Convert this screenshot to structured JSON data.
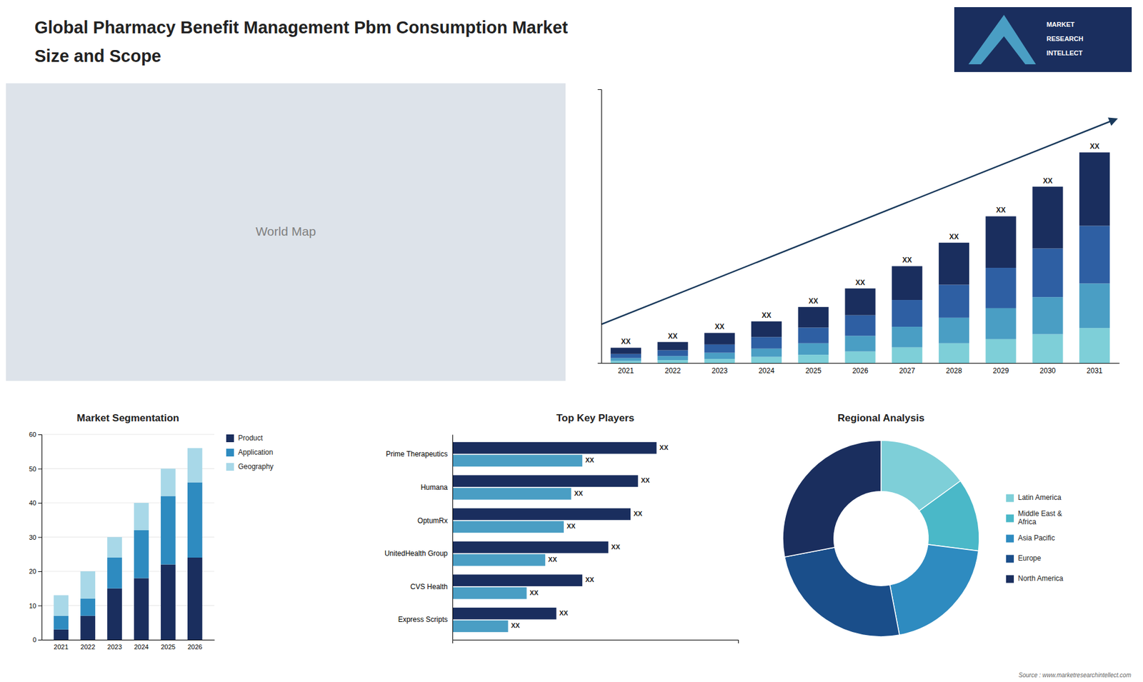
{
  "title": "Global Pharmacy Benefit Management Pbm Consumption Market",
  "subtitle": "Size and Scope",
  "annotations": [
    "World Map",
    "MARKET",
    "RESEARCH",
    "INTELLECT",
    "Source : www.marketresearchintellect.com"
  ],
  "chart_data": [
    {
      "type": "bar",
      "stacked": true,
      "categories": [
        "2021",
        "2022",
        "2023",
        "2024",
        "2025",
        "2026",
        "2027",
        "2028",
        "2029",
        "2030",
        "2031"
      ],
      "series": [
        {
          "color": "#7ecfd8",
          "values": [
            0.5,
            0.7,
            1.0,
            1.5,
            2.0,
            2.8,
            3.8,
            4.8,
            5.8,
            7.0,
            8.5
          ]
        },
        {
          "color": "#4a9ec4",
          "values": [
            0.7,
            1.0,
            1.5,
            2.0,
            2.8,
            3.8,
            5.0,
            6.2,
            7.5,
            9.0,
            10.8
          ]
        },
        {
          "color": "#2e5fa3",
          "values": [
            1.0,
            1.4,
            2.0,
            2.8,
            3.8,
            5.0,
            6.5,
            8.0,
            9.8,
            11.8,
            14.0
          ]
        },
        {
          "color": "#1a2e5e",
          "values": [
            1.5,
            2.0,
            2.8,
            3.8,
            5.0,
            6.5,
            8.2,
            10.2,
            12.5,
            15.0,
            17.8
          ]
        }
      ],
      "annotations": [
        "XX",
        "XX",
        "XX",
        "XX",
        "XX",
        "XX",
        "XX",
        "XX",
        "XX",
        "XX",
        "XX"
      ],
      "ylim": [
        0,
        66.43
      ],
      "tick_labels": "x"
    },
    {
      "type": "bar",
      "stacked": true,
      "title": "Market Segmentation",
      "categories": [
        "2021",
        "2022",
        "2023",
        "2024",
        "2025",
        "2026"
      ],
      "series": [
        {
          "name": "Product",
          "color": "#1a2e5e",
          "values": [
            3,
            7,
            15,
            18,
            22,
            24
          ]
        },
        {
          "name": "Application",
          "color": "#2e8bc0",
          "values": [
            4,
            5,
            9,
            14,
            20,
            22
          ]
        },
        {
          "name": "Geography",
          "color": "#a8d8e8",
          "values": [
            6,
            8,
            6,
            8,
            8,
            10
          ]
        }
      ],
      "ylim": [
        0,
        60
      ],
      "yticks": [
        0,
        10,
        20,
        30,
        40,
        50,
        60
      ],
      "grid": true,
      "legend": "right"
    },
    {
      "type": "bar",
      "orientation": "horizontal",
      "title": "Top Key Players",
      "categories": [
        "Prime Therapeutics",
        "Humana",
        "OptumRx",
        "UnitedHealth Group",
        "CVS Health",
        "Express Scripts"
      ],
      "series": [
        {
          "color": "#1a2e5e",
          "values": [
            5.5,
            5.0,
            4.8,
            4.2,
            3.5,
            2.8
          ],
          "value_labels": [
            "XX",
            "XX",
            "XX",
            "XX",
            "XX",
            "XX"
          ]
        },
        {
          "color": "#4a9ec4",
          "values": [
            3.5,
            3.2,
            3.0,
            2.5,
            2.0,
            1.5
          ],
          "value_labels": [
            "XX",
            "XX",
            "XX",
            "XX",
            "XX",
            "XX"
          ]
        }
      ],
      "xlim": [
        0,
        7.7
      ],
      "data_labels": true,
      "tick_labels": "y"
    },
    {
      "type": "pie",
      "title": "Regional Analysis",
      "categories": [
        "Latin America",
        "Middle East &\nAfrica",
        "Asia Pacific",
        "Europe",
        "North America"
      ],
      "values": [
        15,
        12,
        20,
        25,
        28
      ],
      "colors": [
        "#7ecfd8",
        "#4ab8c8",
        "#2e8bc0",
        "#1a4e8a",
        "#1a2e5e"
      ],
      "legend": "right"
    }
  ]
}
